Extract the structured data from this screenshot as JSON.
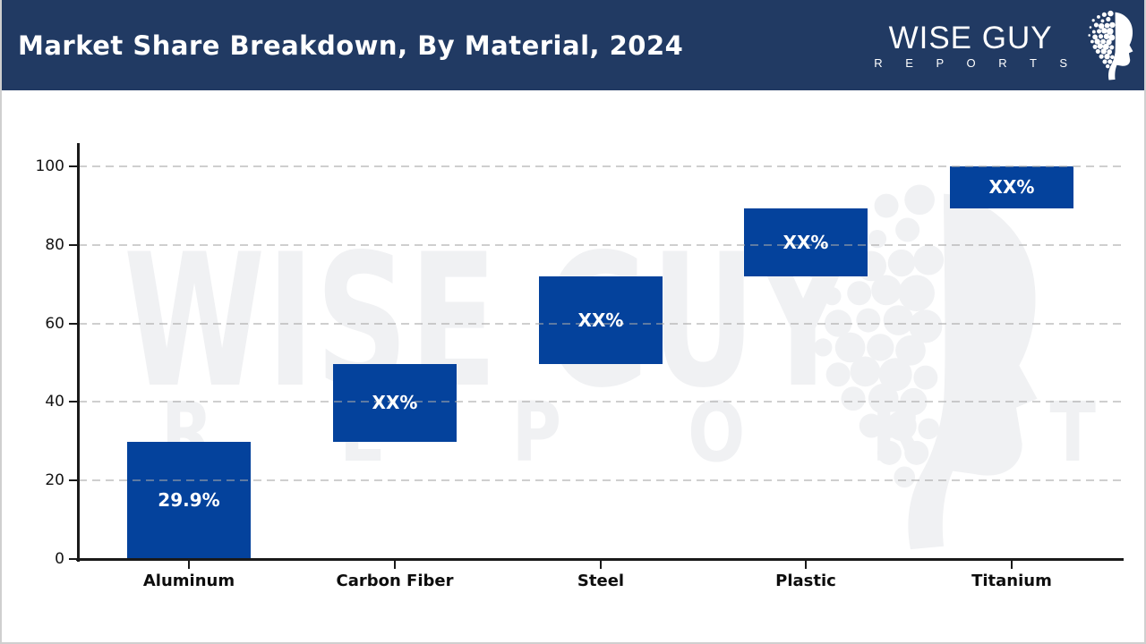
{
  "header": {
    "title": "Market Share Breakdown, By Material, 2024",
    "logo_line1": "WISE GUY",
    "logo_line2": "R E P O R T S"
  },
  "watermark": {
    "line1": "WISE GUY",
    "line2": "R E P O R T S"
  },
  "chart_data": {
    "type": "bar",
    "subtype": "waterfall",
    "title": "Market Share Breakdown, By Material, 2024",
    "categories": [
      "Aluminum",
      "Carbon Fiber",
      "Steel",
      "Plastic",
      "Titanium"
    ],
    "bars": [
      {
        "category": "Aluminum",
        "base": 0,
        "top": 29.9,
        "label": "29.9%"
      },
      {
        "category": "Carbon Fiber",
        "base": 29.9,
        "top": 49.6,
        "label": "XX%"
      },
      {
        "category": "Steel",
        "base": 49.6,
        "top": 71.9,
        "label": "XX%"
      },
      {
        "category": "Plastic",
        "base": 71.9,
        "top": 89.3,
        "label": "XX%"
      },
      {
        "category": "Titanium",
        "base": 89.3,
        "top": 100,
        "label": "XX%"
      }
    ],
    "xlabel": "",
    "ylabel": "",
    "ylim": [
      0,
      100
    ],
    "yticks": [
      0,
      20,
      40,
      60,
      80,
      100
    ],
    "grid": "horizontal-dashed",
    "legend": "none",
    "colors": {
      "bar": "#04429c",
      "bar_label": "#ffffff",
      "axis": "#1a1a1a",
      "gridline": "#d3d3d3",
      "header_bg": "#213a63",
      "watermark": "#f0f1f3"
    }
  }
}
